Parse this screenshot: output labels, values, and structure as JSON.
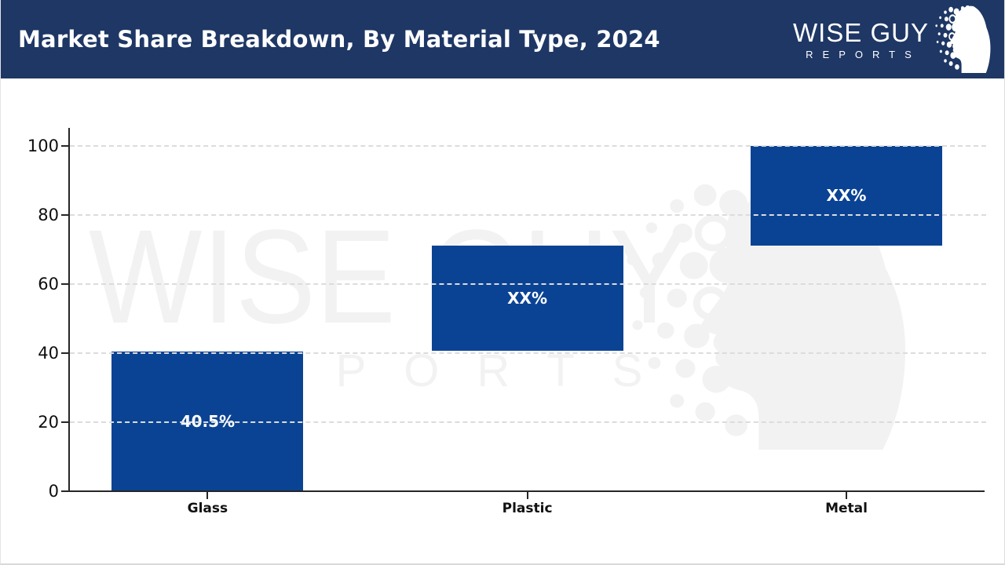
{
  "header": {
    "title": "Market Share Breakdown, By Material Type, 2024",
    "logo": {
      "name": "WISE GUY",
      "subtitle": "REPORTS",
      "icon": "face-profile-dots-icon"
    }
  },
  "watermark": {
    "name": "WISE GUY",
    "subtitle": "REPORTS",
    "icon": "face-profile-dots-icon"
  },
  "chart_data": {
    "type": "bar",
    "subtype": "waterfall",
    "title": "Market Share Breakdown, By Material Type, 2024",
    "categories": [
      "Glass",
      "Plastic",
      "Metal"
    ],
    "segments": [
      {
        "category": "Glass",
        "start": 0,
        "end": 40.5,
        "label": "40.5%"
      },
      {
        "category": "Plastic",
        "start": 40.5,
        "end": 71,
        "label": "XX%"
      },
      {
        "category": "Metal",
        "start": 71,
        "end": 100,
        "label": "XX%"
      }
    ],
    "xlabel": "",
    "ylabel": "",
    "ylim": [
      0,
      100
    ],
    "yticks": [
      0,
      20,
      40,
      60,
      80,
      100
    ],
    "grid": "horizontal-dashed-over-bars",
    "legend": "none",
    "colors": {
      "bar": "#0B4394",
      "bar_label": "#FFFFFF",
      "grid": "#DCDCDC",
      "axis": "#262626",
      "tick_label": "#0D0D0D",
      "category_label": "#111111",
      "header_bg": "#1E3765",
      "header_text": "#FFFFFF",
      "watermark": "#F2F2F2",
      "background": "#FFFFFF"
    }
  }
}
